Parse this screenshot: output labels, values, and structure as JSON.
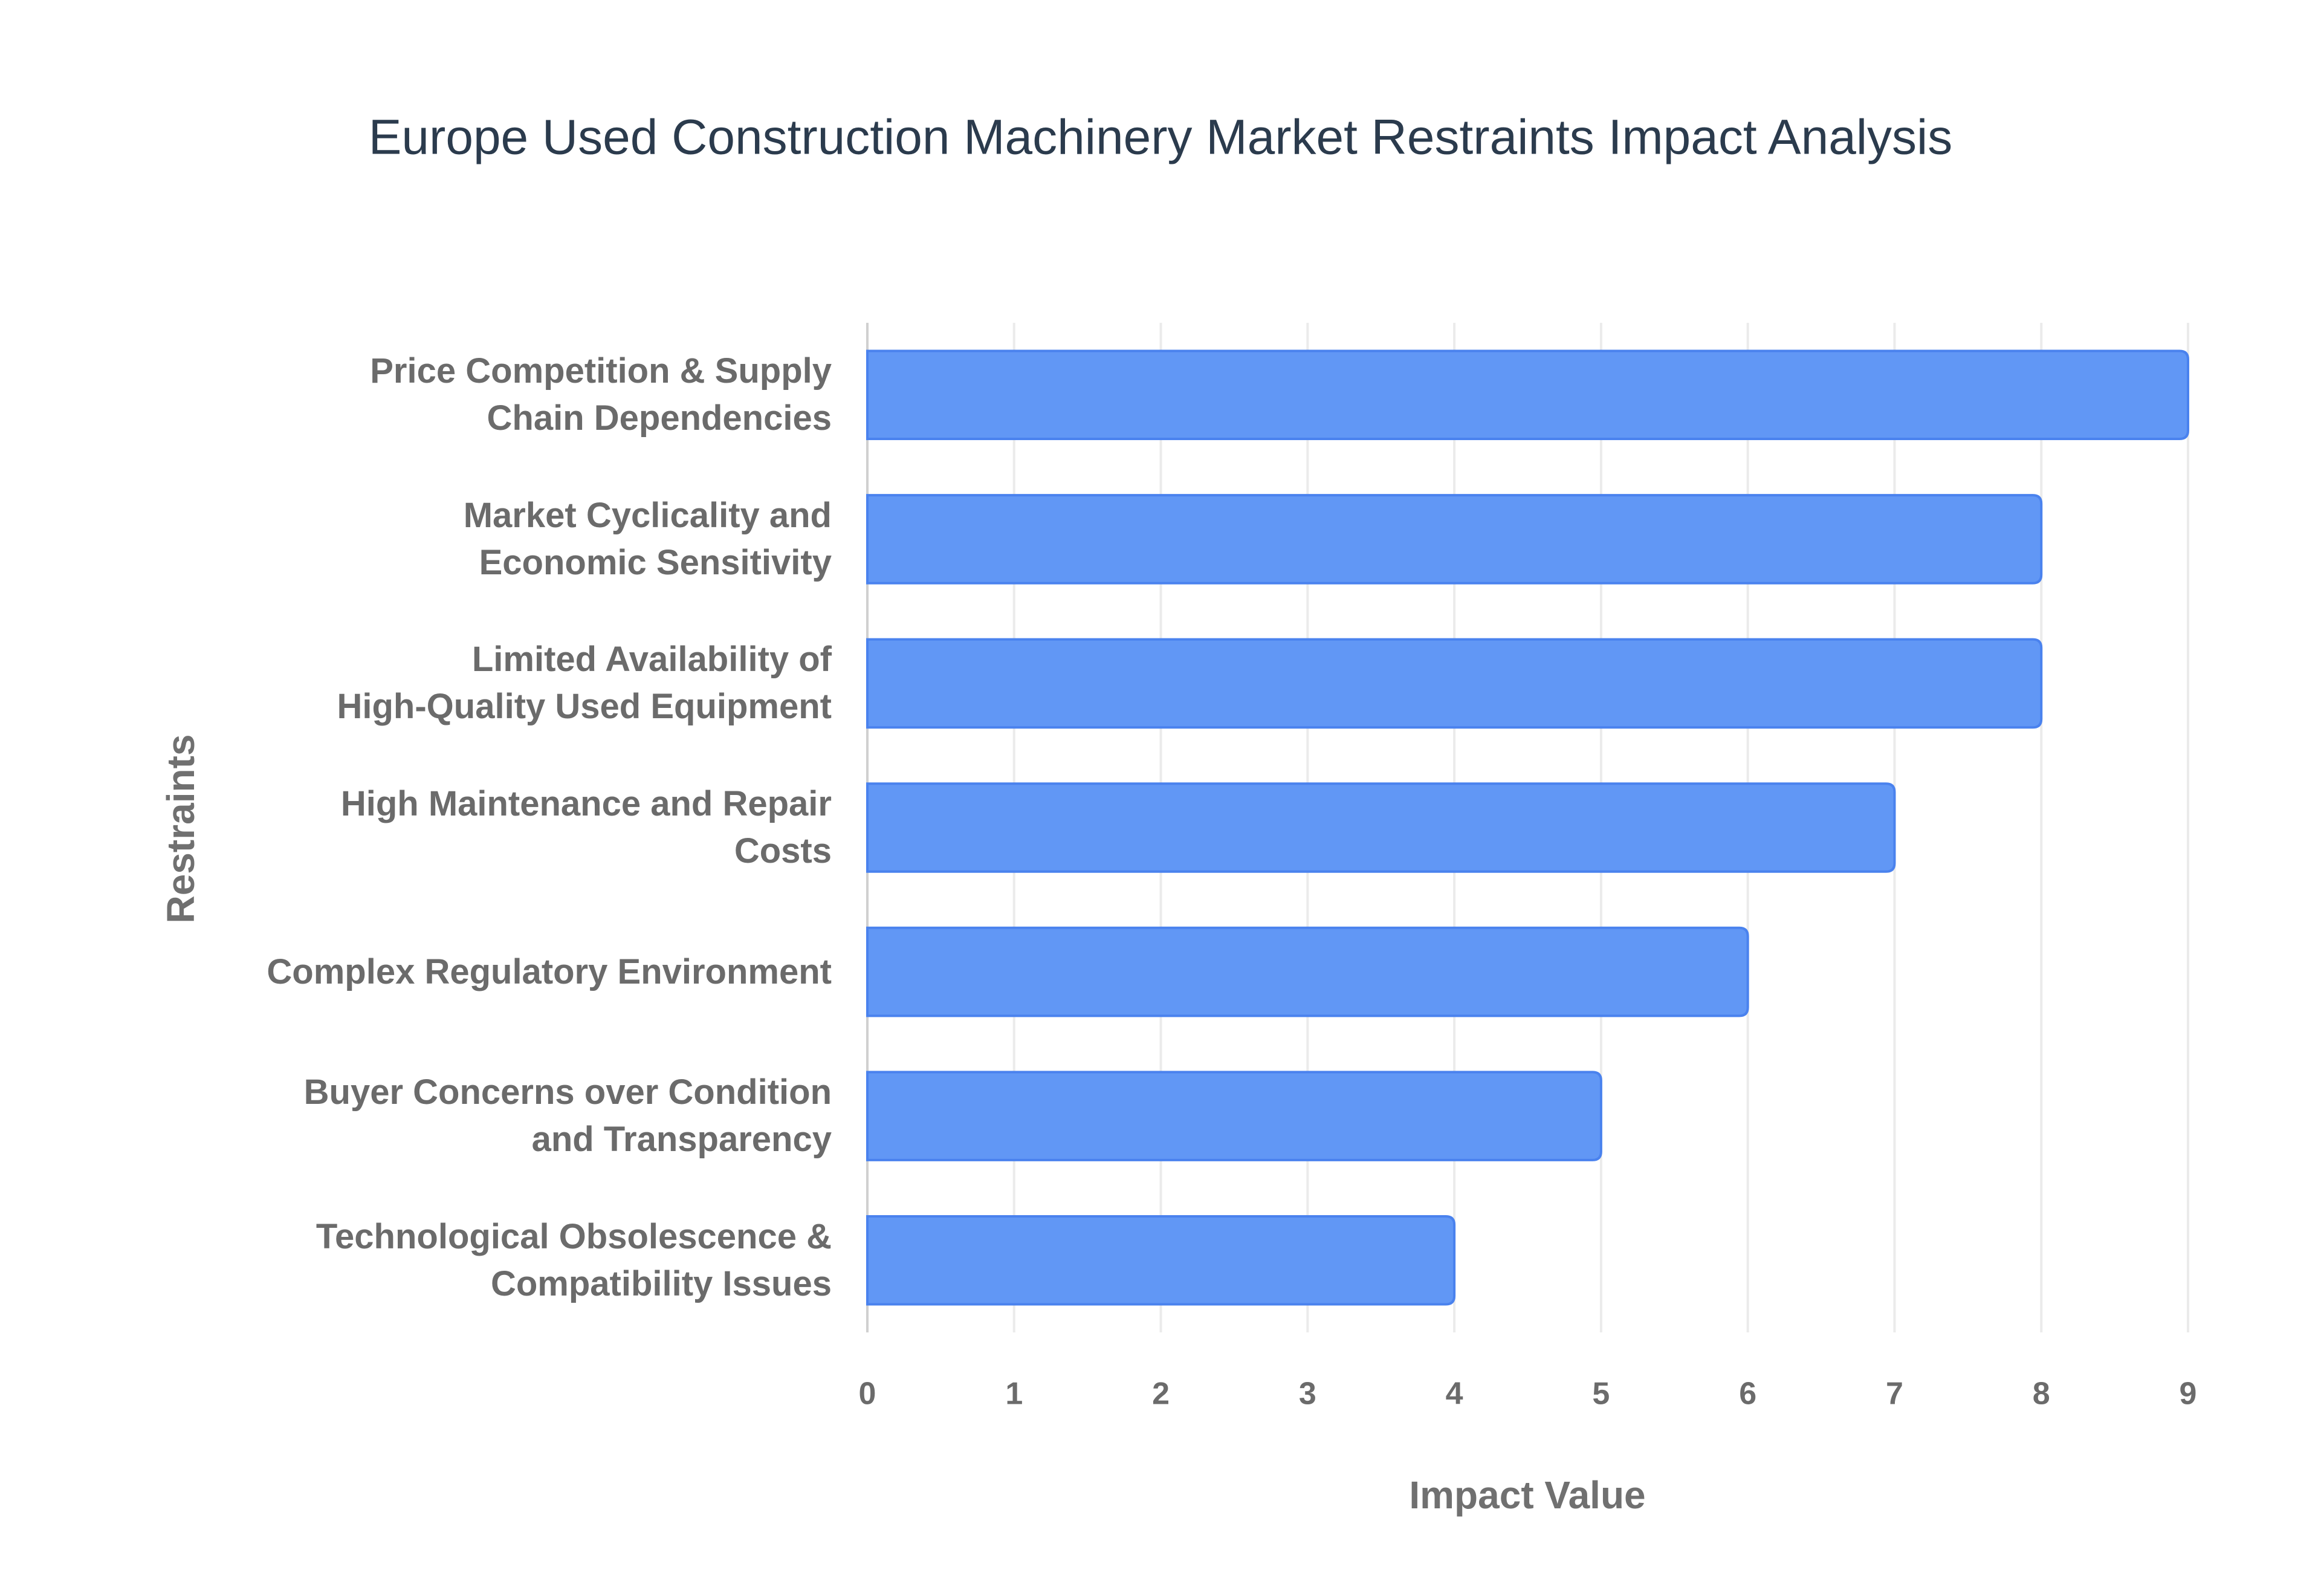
{
  "chart_data": {
    "type": "hbar",
    "title": "Europe Used Construction Machinery Market Restraints Impact Analysis",
    "x_label": "Impact Value",
    "y_label": "Restraints",
    "categories": [
      "Price Competition & Supply\nChain Dependencies",
      "Market Cyclicality and\nEconomic Sensitivity",
      "Limited Availability of\nHigh-Quality Used Equipment",
      "High Maintenance and Repair\nCosts",
      "Complex Regulatory Environment",
      "Buyer Concerns over Condition\nand Transparency",
      "Technological Obsolescence &\nCompatibility Issues"
    ],
    "values": [
      9,
      8,
      8,
      7,
      6,
      5,
      4
    ],
    "color": "#6197f5",
    "xlim": [
      0,
      9
    ],
    "xticks": [
      0,
      1,
      2,
      3,
      4,
      5,
      6,
      7,
      8,
      9
    ],
    "grid": true
  }
}
